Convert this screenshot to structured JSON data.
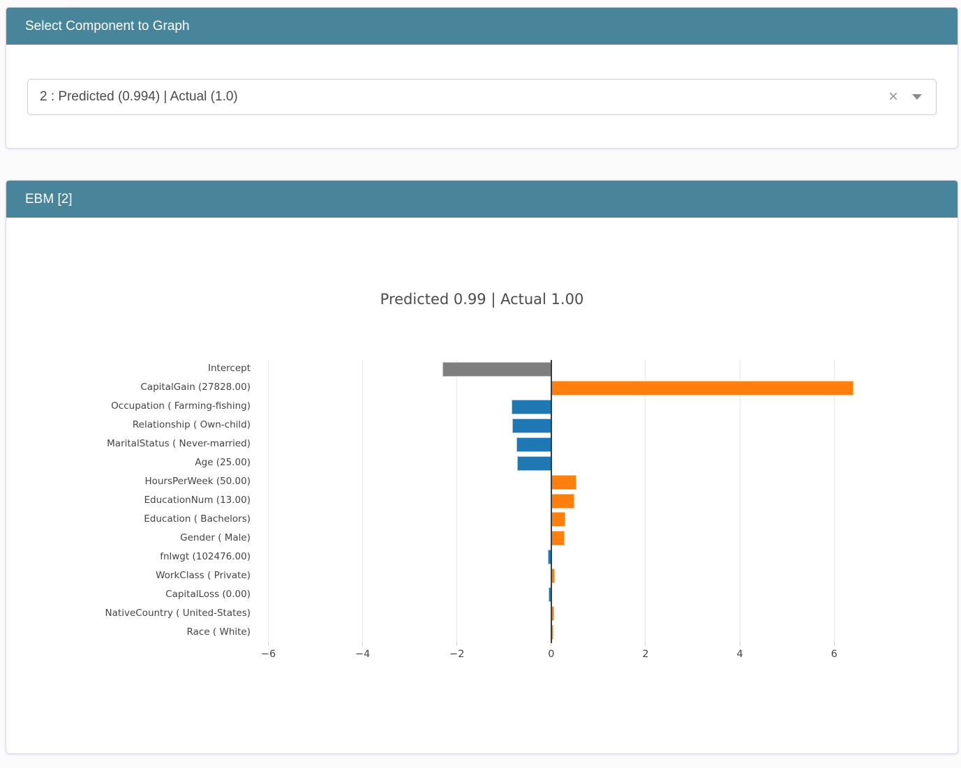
{
  "select_card": {
    "header": "Select Component to Graph",
    "dropdown": {
      "value": "2 : Predicted (0.994) | Actual (1.0)",
      "clear_icon": "×"
    }
  },
  "ebm_card": {
    "header": "EBM [2]"
  },
  "chart_data": {
    "type": "bar",
    "orientation": "horizontal",
    "title": "Predicted 0.99 | Actual 1.00",
    "categories": [
      "Intercept",
      "CapitalGain (27828.00)",
      "Occupation ( Farming-fishing)",
      "Relationship ( Own-child)",
      "MaritalStatus ( Never-married)",
      "Age (25.00)",
      "HoursPerWeek (50.00)",
      "EducationNum (13.00)",
      "Education ( Bachelors)",
      "Gender ( Male)",
      "fnlwgt (102476.00)",
      "WorkClass ( Private)",
      "CapitalLoss (0.00)",
      "NativeCountry ( United-States)",
      "Race ( White)"
    ],
    "values": [
      -2.31,
      6.41,
      -0.84,
      -0.82,
      -0.74,
      -0.72,
      0.54,
      0.49,
      0.3,
      0.28,
      -0.07,
      0.08,
      -0.05,
      0.06,
      0.05
    ],
    "bar_roles": [
      "intercept",
      "positive",
      "negative",
      "negative",
      "negative",
      "negative",
      "positive",
      "positive",
      "positive",
      "positive",
      "negative",
      "positive",
      "negative",
      "positive",
      "positive"
    ],
    "colors": {
      "positive": {
        "fill": "#ff7f0e",
        "edge": "#fdc480"
      },
      "negative": {
        "fill": "#1f77b4",
        "edge": "#a8cbe5"
      },
      "intercept": {
        "fill": "#7f7f7f",
        "edge": "#c9c9c9"
      }
    },
    "xlim": [
      -6.2,
      6.9
    ],
    "x_ticks": [
      -6,
      -4,
      -2,
      0,
      2,
      4,
      6
    ],
    "x_tick_labels": [
      "−6",
      "−4",
      "−2",
      "0",
      "2",
      "4",
      "6"
    ],
    "grid": true,
    "legend": "none"
  }
}
